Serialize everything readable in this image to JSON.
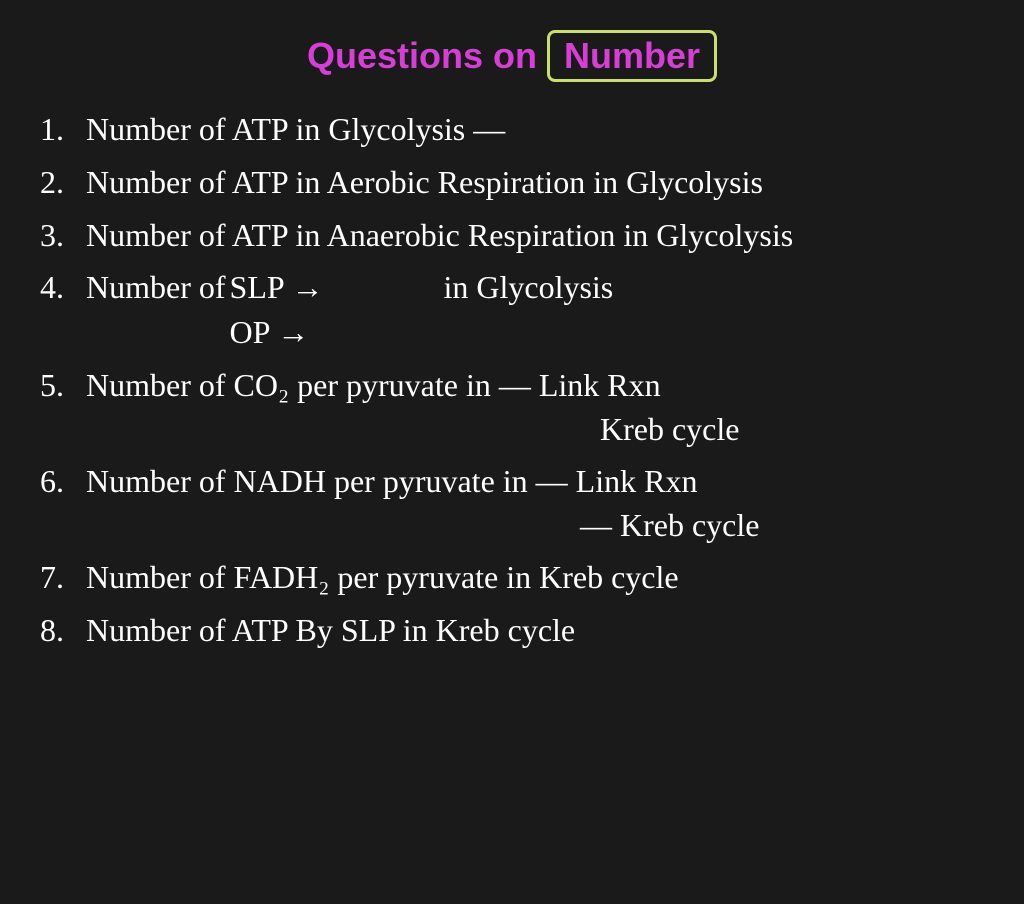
{
  "title": {
    "prefix": "Questions on",
    "boxed": "Number"
  },
  "colors": {
    "background": "#1a1a1a",
    "title_text": "#d63ed6",
    "box_border": "#c9e265",
    "body_text": "#ffffff"
  },
  "typography": {
    "title_fontsize": 36,
    "body_fontsize": 32,
    "title_font": "Arial",
    "body_font": "Comic Sans MS"
  },
  "questions": [
    {
      "num": "1.",
      "text": "Number of ATP in Glycolysis —"
    },
    {
      "num": "2.",
      "text": "Number of ATP in Aerobic Respiration in Glycolysis"
    },
    {
      "num": "3.",
      "text": "Number of ATP in Anaerobic Respiration in Glycolysis"
    },
    {
      "num": "4.",
      "lead": "Number of",
      "row1": "SLP →",
      "row2": "OP →",
      "tail": "in Glycolysis"
    },
    {
      "num": "5.",
      "text": "Number of CO₂ per pyruvate in — Link Rxn",
      "sub": "Kreb cycle"
    },
    {
      "num": "6.",
      "text": "Number of NADH per pyruvate in — Link Rxn",
      "sub": "— Kreb cycle"
    },
    {
      "num": "7.",
      "text": "Number of FADH₂ per pyruvate in Kreb cycle"
    },
    {
      "num": "8.",
      "text": "Number of ATP By SLP in Kreb cycle"
    }
  ]
}
